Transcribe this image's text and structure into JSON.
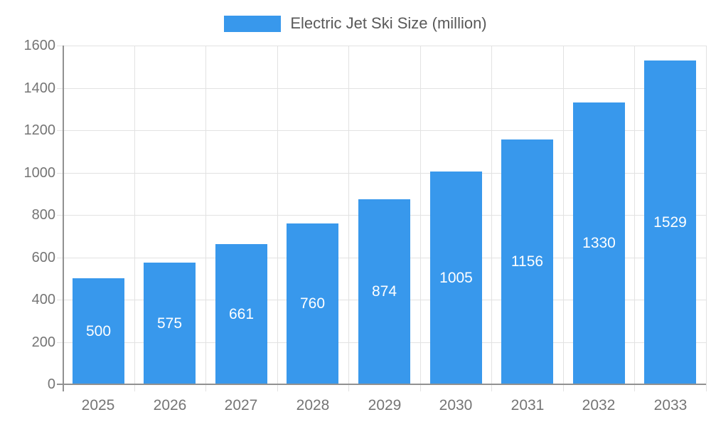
{
  "chart_data": {
    "type": "bar",
    "title": "Electric Jet Ski Size (million)",
    "legend": {
      "label": "Electric Jet Ski Size (million)",
      "position": "top"
    },
    "categories": [
      "2025",
      "2026",
      "2027",
      "2028",
      "2029",
      "2030",
      "2031",
      "2032",
      "2033"
    ],
    "values": [
      500,
      575,
      661,
      760,
      874,
      1005,
      1156,
      1330,
      1529
    ],
    "value_labels_shown": true,
    "xlabel": "",
    "ylabel": "",
    "ylim": [
      0,
      1600
    ],
    "y_ticks": [
      0,
      200,
      400,
      600,
      800,
      1000,
      1200,
      1400,
      1600
    ],
    "grid": true,
    "colors": {
      "bar": "#3898EC",
      "grid": "#E2E2E2",
      "axis": "#919191",
      "tick_label": "#757575",
      "legend_text": "#595959",
      "value_label": "#FFFFFF",
      "background": "#FFFFFF"
    }
  }
}
